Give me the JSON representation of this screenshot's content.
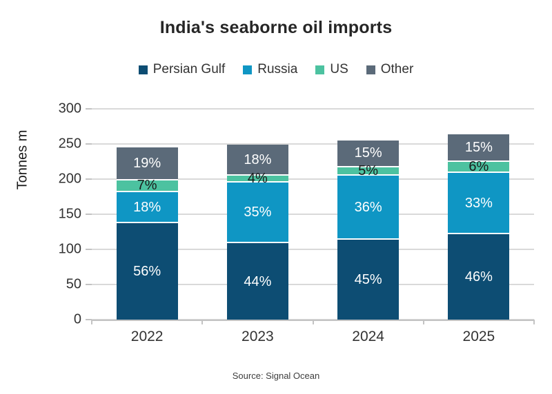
{
  "chart_data": {
    "type": "bar",
    "stacked": true,
    "title": "India's seaborne oil imports",
    "ylabel": "Tonnes m",
    "xlabel": "",
    "ylim": [
      0,
      300
    ],
    "yticks": [
      0,
      50,
      100,
      150,
      200,
      250,
      300
    ],
    "grid": true,
    "legend_position": "top",
    "categories": [
      "2022",
      "2023",
      "2024",
      "2025"
    ],
    "totals_tonnes_m": [
      245,
      249,
      255,
      264
    ],
    "series": [
      {
        "name": "Persian Gulf",
        "color": "#0d4d73",
        "label_color": "#ffffff",
        "percents": [
          56,
          44,
          45,
          46
        ]
      },
      {
        "name": "Russia",
        "color": "#0f96c4",
        "label_color": "#ffffff",
        "percents": [
          18,
          35,
          36,
          33
        ]
      },
      {
        "name": "US",
        "color": "#4cc2a0",
        "label_color": "#1a1a1a",
        "percents": [
          7,
          4,
          5,
          6
        ]
      },
      {
        "name": "Other",
        "color": "#5b6a79",
        "label_color": "#ffffff",
        "percents": [
          19,
          18,
          15,
          15
        ]
      }
    ],
    "percent_suffix": "%",
    "source": "Source: Signal Ocean"
  }
}
